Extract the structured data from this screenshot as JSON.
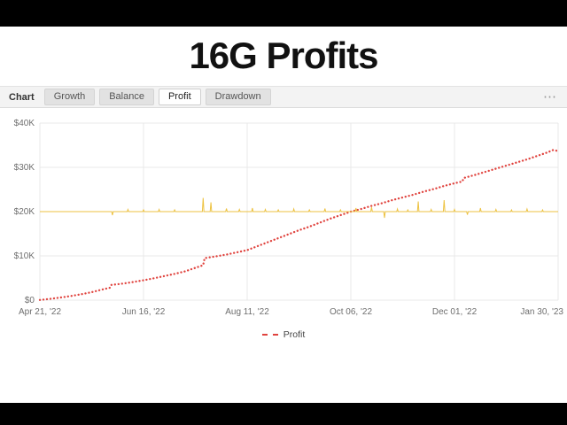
{
  "page": {
    "title": "16G Profits"
  },
  "tabs": {
    "section_label": "Chart",
    "items": [
      {
        "label": "Growth",
        "active": false
      },
      {
        "label": "Balance",
        "active": false
      },
      {
        "label": "Profit",
        "active": true
      },
      {
        "label": "Drawdown",
        "active": false
      }
    ],
    "menu_icon": "⋯"
  },
  "chart_data": {
    "type": "line",
    "title": "",
    "xlabel": "",
    "ylabel": "",
    "grid": true,
    "legend_position": "bottom",
    "ylim": [
      0,
      40000
    ],
    "y_ticks": [
      {
        "v": 0,
        "label": "$0"
      },
      {
        "v": 10000,
        "label": "$10K"
      },
      {
        "v": 20000,
        "label": "$20K"
      },
      {
        "v": 30000,
        "label": "$30K"
      },
      {
        "v": 40000,
        "label": "$40K"
      }
    ],
    "x_ticks": [
      "Apr 21, '22",
      "Jun 16, '22",
      "Aug 11, '22",
      "Oct 06, '22",
      "Dec 01, '22",
      "Jan 30, '23"
    ],
    "series": [
      {
        "name": "Profit",
        "color": "#e0433e",
        "style": "dotted",
        "points": [
          [
            0,
            50
          ],
          [
            0.02,
            300
          ],
          [
            0.04,
            600
          ],
          [
            0.06,
            950
          ],
          [
            0.08,
            1350
          ],
          [
            0.1,
            1800
          ],
          [
            0.12,
            2400
          ],
          [
            0.135,
            2800
          ],
          [
            0.138,
            3450
          ],
          [
            0.16,
            3750
          ],
          [
            0.18,
            4100
          ],
          [
            0.2,
            4500
          ],
          [
            0.22,
            4950
          ],
          [
            0.24,
            5450
          ],
          [
            0.26,
            5950
          ],
          [
            0.28,
            6500
          ],
          [
            0.3,
            7300
          ],
          [
            0.315,
            7900
          ],
          [
            0.318,
            9500
          ],
          [
            0.34,
            9900
          ],
          [
            0.36,
            10300
          ],
          [
            0.38,
            10800
          ],
          [
            0.4,
            11300
          ],
          [
            0.42,
            12200
          ],
          [
            0.44,
            13100
          ],
          [
            0.46,
            14000
          ],
          [
            0.48,
            14900
          ],
          [
            0.5,
            15800
          ],
          [
            0.52,
            16600
          ],
          [
            0.54,
            17500
          ],
          [
            0.56,
            18400
          ],
          [
            0.58,
            19200
          ],
          [
            0.6,
            20000
          ],
          [
            0.62,
            20600
          ],
          [
            0.64,
            21300
          ],
          [
            0.66,
            21900
          ],
          [
            0.68,
            22600
          ],
          [
            0.7,
            23200
          ],
          [
            0.72,
            23800
          ],
          [
            0.74,
            24500
          ],
          [
            0.76,
            25100
          ],
          [
            0.78,
            25800
          ],
          [
            0.8,
            26400
          ],
          [
            0.815,
            26800
          ],
          [
            0.818,
            27600
          ],
          [
            0.84,
            28300
          ],
          [
            0.86,
            29000
          ],
          [
            0.88,
            29700
          ],
          [
            0.9,
            30400
          ],
          [
            0.92,
            31100
          ],
          [
            0.94,
            31800
          ],
          [
            0.96,
            32600
          ],
          [
            0.98,
            33400
          ],
          [
            0.99,
            33900
          ],
          [
            1.0,
            33700
          ]
        ]
      },
      {
        "id": "yellow-baseline",
        "color": "#edc240",
        "style": "solid",
        "baseline": 20000,
        "spikes": [
          [
            0.14,
            19200
          ],
          [
            0.17,
            20500
          ],
          [
            0.2,
            20400
          ],
          [
            0.23,
            20500
          ],
          [
            0.26,
            20400
          ],
          [
            0.315,
            23100
          ],
          [
            0.33,
            22100
          ],
          [
            0.36,
            20700
          ],
          [
            0.385,
            20500
          ],
          [
            0.41,
            20800
          ],
          [
            0.435,
            20500
          ],
          [
            0.46,
            20400
          ],
          [
            0.49,
            20600
          ],
          [
            0.52,
            20400
          ],
          [
            0.55,
            20700
          ],
          [
            0.58,
            20400
          ],
          [
            0.61,
            20800
          ],
          [
            0.64,
            21000
          ],
          [
            0.665,
            18600
          ],
          [
            0.69,
            20600
          ],
          [
            0.71,
            20400
          ],
          [
            0.73,
            22300
          ],
          [
            0.755,
            20500
          ],
          [
            0.78,
            22600
          ],
          [
            0.8,
            20500
          ],
          [
            0.825,
            19300
          ],
          [
            0.85,
            20800
          ],
          [
            0.88,
            20500
          ],
          [
            0.91,
            20400
          ],
          [
            0.94,
            20600
          ],
          [
            0.97,
            20400
          ]
        ]
      }
    ]
  }
}
